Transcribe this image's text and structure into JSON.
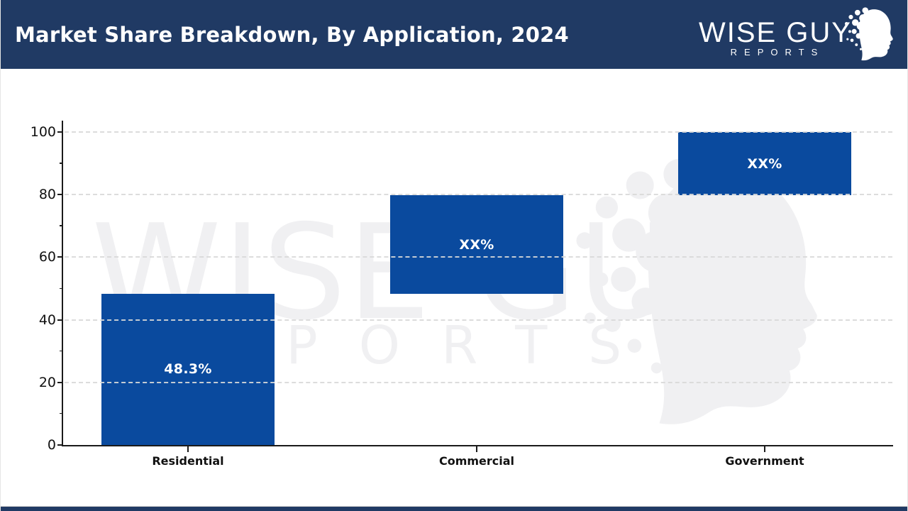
{
  "header": {
    "title": "Market Share Breakdown, By Application, 2024",
    "logo": {
      "wordmark": "WISE GUY",
      "subtext": "REPORTS"
    }
  },
  "watermark": {
    "wordmark": "WISE GUY",
    "subtext": "REPORTS"
  },
  "colors": {
    "header_bg": "#203a64",
    "footer_bg": "#203a64",
    "bar": "#0a4a9e",
    "bar_label_text": "#ffffff",
    "grid": "#d9d9d9",
    "axis": "#1a1a1a",
    "watermark": "#f0f0f2"
  },
  "chart_data": {
    "type": "bar",
    "variant": "waterfall",
    "title": "Market Share Breakdown, By Application, 2024",
    "categories": [
      "Residential",
      "Commercial",
      "Government"
    ],
    "segments": [
      {
        "category": "Residential",
        "start": 0,
        "end": 48.3,
        "value": 48.3,
        "label": "48.3%"
      },
      {
        "category": "Commercial",
        "start": 48.3,
        "end": 79.8,
        "value": 31.5,
        "label": "XX%"
      },
      {
        "category": "Government",
        "start": 79.8,
        "end": 100,
        "value": 20.2,
        "label": "XX%"
      }
    ],
    "xlabel": "",
    "ylabel": "",
    "yticks": [
      0,
      20,
      40,
      60,
      80,
      100
    ],
    "yticks_minor": [
      10,
      30,
      50,
      70,
      90
    ],
    "ylim": [
      0,
      105
    ],
    "grid": "horizontal-dashed",
    "legend": "none"
  }
}
